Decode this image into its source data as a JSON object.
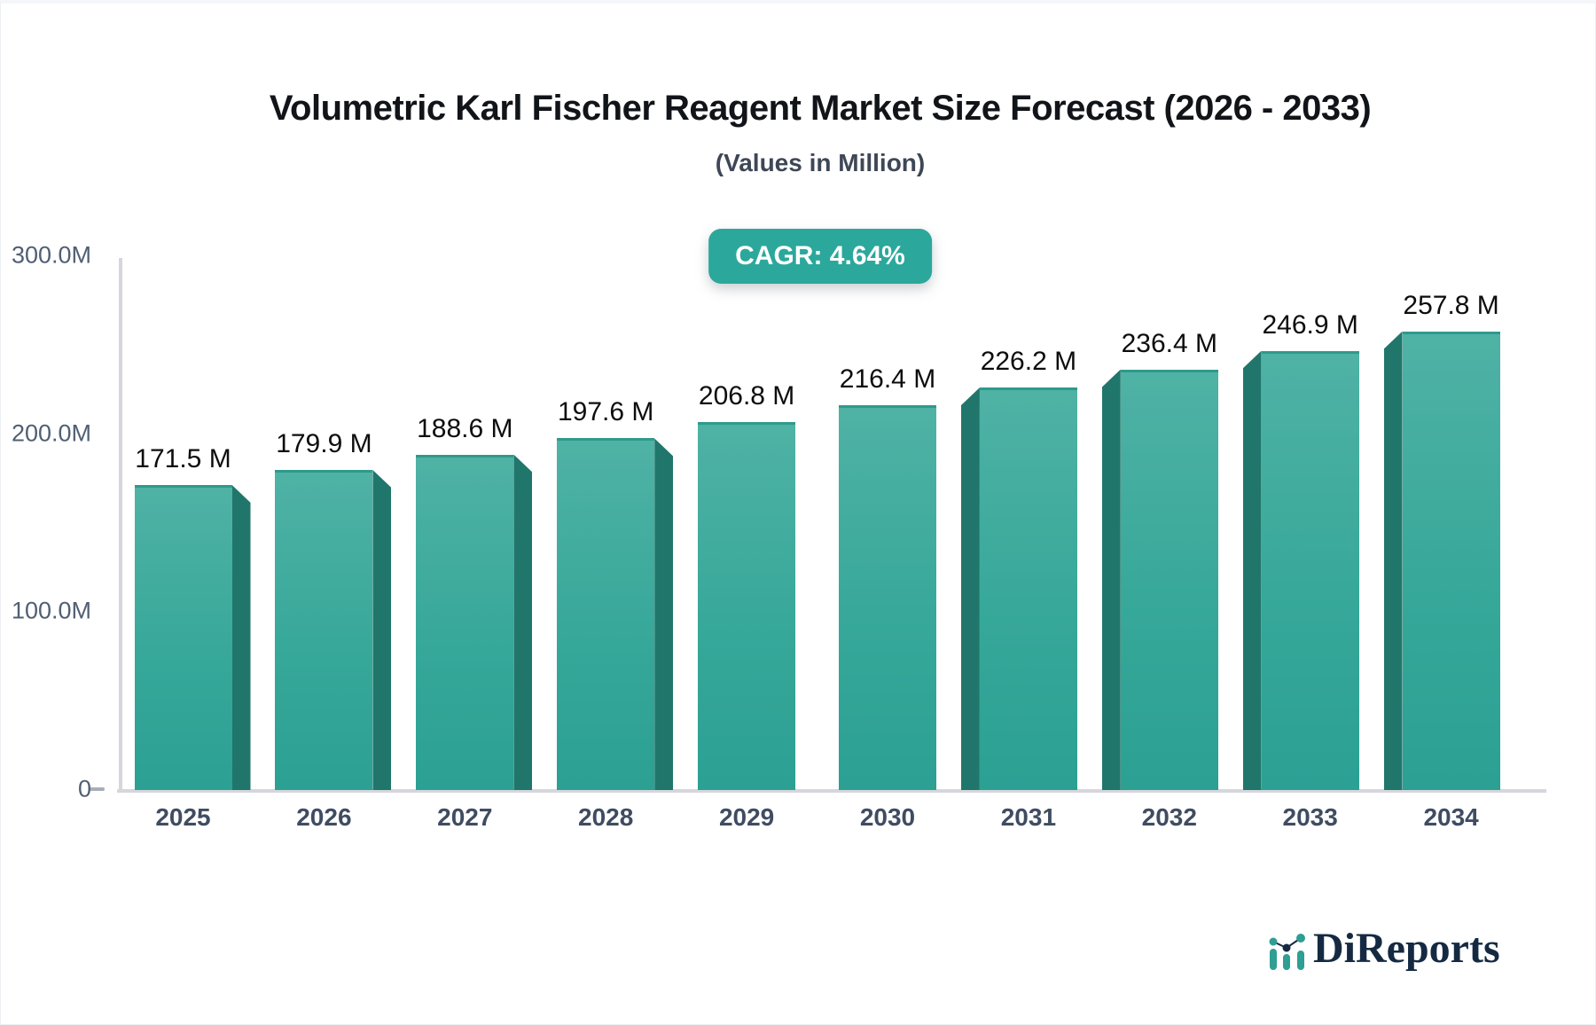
{
  "header": {
    "title": "Volumetric Karl Fischer Reagent Market Size Forecast (2026 - 2033)",
    "subtitle": "(Values in Million)",
    "cagr_badge": "CAGR: 4.64%"
  },
  "chart_data": {
    "type": "bar",
    "title": "Volumetric Karl Fischer Reagent Market Size Forecast (2026 - 2033)",
    "subtitle": "(Values in Million)",
    "categories": [
      "2025",
      "2026",
      "2027",
      "2028",
      "2029",
      "2030",
      "2031",
      "2032",
      "2033",
      "2034"
    ],
    "values": [
      171.5,
      179.9,
      188.6,
      197.6,
      206.8,
      216.4,
      226.2,
      236.4,
      246.9,
      257.8
    ],
    "value_labels": [
      "171.5 M",
      "179.9 M",
      "188.6 M",
      "197.6 M",
      "206.8 M",
      "216.4 M",
      "226.2 M",
      "236.4 M",
      "246.9 M",
      "257.8 M"
    ],
    "xlabel": "",
    "ylabel": "",
    "ylim": [
      0,
      300
    ],
    "grid": false,
    "legend": "none",
    "y_ticks": [
      {
        "label": "300.0M",
        "value": 300,
        "tick_mark": false
      },
      {
        "label": "200.0M",
        "value": 200,
        "tick_mark": false
      },
      {
        "label": "100.0M",
        "value": 100,
        "tick_mark": false
      },
      {
        "label": "0",
        "value": 0,
        "tick_mark": true
      }
    ],
    "cagr": "CAGR: 4.64%"
  },
  "logo": {
    "text": "DiReports",
    "icon": "mini-bar-line-chart-icon"
  },
  "colors": {
    "bar_face_top": "#4FB2A5",
    "bar_face_bottom": "#2BA093",
    "bar_side": "#20766B",
    "bar_top_edge": "#2E9A8C",
    "badge_background": "#2BA89B",
    "badge_text": "#FFFFFF",
    "axis_line": "#D6D7DC",
    "y_label_text": "#505F73",
    "x_label_text": "#3F4C61",
    "value_label_text": "#0D0D0D",
    "title_text": "#111418",
    "subtitle_text": "#3E4756",
    "logo_navy": "#152A42",
    "logo_teal": "#2F9E93"
  }
}
